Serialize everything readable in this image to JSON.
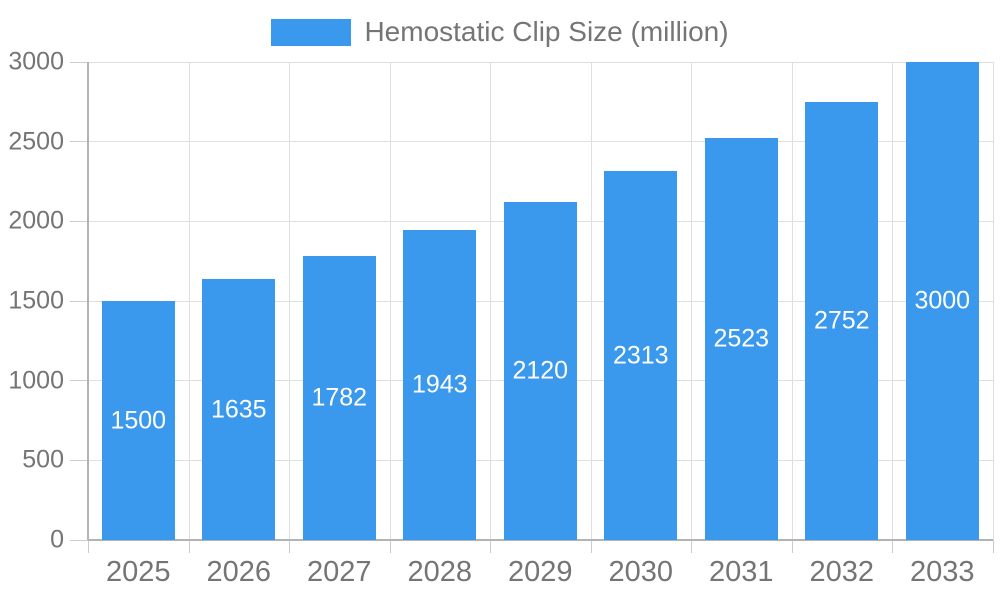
{
  "legend": {
    "label": "Hemostatic Clip Size (million)"
  },
  "chart_data": {
    "type": "bar",
    "title": "",
    "series_name": "Hemostatic Clip Size (million)",
    "categories": [
      "2025",
      "2026",
      "2027",
      "2028",
      "2029",
      "2030",
      "2031",
      "2032",
      "2033"
    ],
    "values": [
      1500,
      1635,
      1782,
      1943,
      2120,
      2313,
      2523,
      2752,
      3000
    ],
    "bar_labels": [
      "1500",
      "1635",
      "1782",
      "1943",
      "2120",
      "2313",
      "2523",
      "2752",
      "3000"
    ],
    "xlabel": "",
    "ylabel": "",
    "ylim": [
      0,
      3000
    ],
    "yticks": [
      0,
      500,
      1000,
      1500,
      2000,
      2500,
      3000
    ],
    "ytick_labels": [
      "0",
      "500",
      "1000",
      "1500",
      "2000",
      "2500",
      "3000"
    ],
    "grid": true,
    "legend_position": "top-center",
    "bar_label_position": "inside-center",
    "colors": {
      "bar": "#3A99EC",
      "bar_label": "#FFFFFF",
      "grid": "#DFDFDF",
      "axis": "#B3B3B3",
      "tick": "#CCCCCC",
      "text": "#757575",
      "background": "#FFFFFF"
    }
  }
}
